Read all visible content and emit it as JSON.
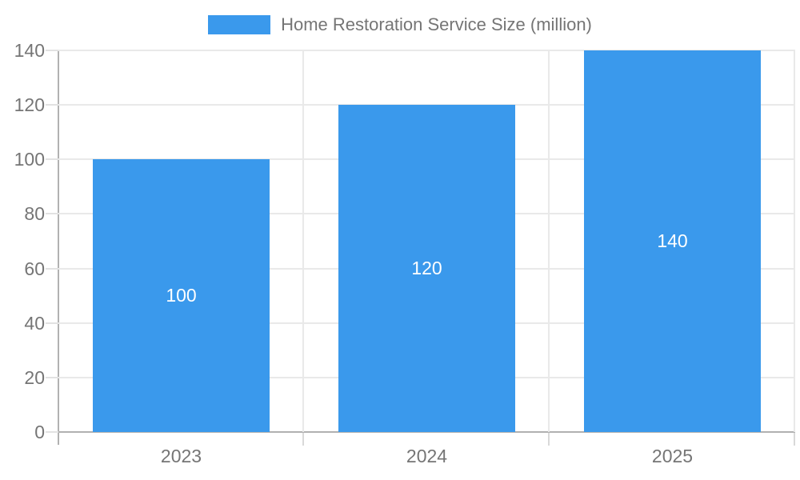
{
  "legend": {
    "label": "Home Restoration Service Size (million)"
  },
  "colors": {
    "background": "#ffffff",
    "bar": "#3a99ec",
    "bar_label": "#ffffff",
    "axis_text": "#757575",
    "grid": "#e9e9e9",
    "axis_line": "#b1b1b1",
    "tick": "#e2e2e2",
    "tick_x": "#d9d9d9"
  },
  "chart_data": {
    "type": "bar",
    "title": "",
    "xlabel": "",
    "ylabel": "",
    "categories": [
      "2023",
      "2024",
      "2025"
    ],
    "series": [
      {
        "name": "Home Restoration Service Size (million)",
        "values": [
          100,
          120,
          140
        ]
      }
    ],
    "bar_value_labels": [
      "100",
      "120",
      "140"
    ],
    "ylim": [
      0,
      140
    ],
    "yticks": [
      0,
      20,
      40,
      60,
      80,
      100,
      120,
      140
    ],
    "grid": true,
    "legend_position": "top-center"
  }
}
